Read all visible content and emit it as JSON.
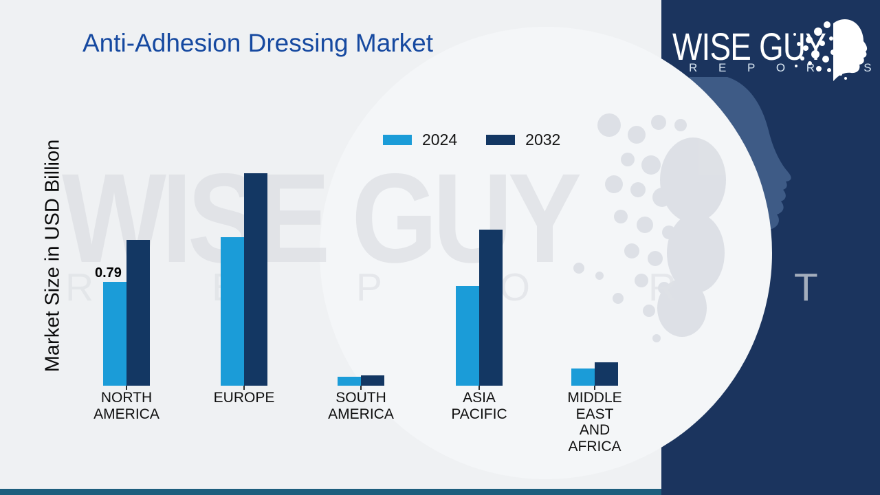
{
  "title": "Anti-Adhesion Dressing Market",
  "y_axis_label": "Market Size in USD Billion",
  "watermark": {
    "line1": "WISE GUY",
    "line2": "R E P O R T S"
  },
  "logo": {
    "brand": "WISE GUY",
    "reports": "R E P O R T S"
  },
  "colors": {
    "background": "#eff1f3",
    "panel_navy": "#1b345e",
    "accent_2024": "#1b9cd8",
    "accent_2032": "#133763",
    "title_blue": "#1649a0",
    "bottom_strip_teal": "#1d5e7d"
  },
  "chart_data": {
    "type": "bar",
    "title": "Anti-Adhesion Dressing Market",
    "xlabel": "",
    "ylabel": "Market Size in USD Billion",
    "categories": [
      "NORTH\nAMERICA",
      "EUROPE",
      "SOUTH\nAMERICA",
      "ASIA\nPACIFIC",
      "MIDDLE\nEAST\nAND\nAFRICA"
    ],
    "series": [
      {
        "name": "2024",
        "color": "#1b9cd8",
        "values": [
          0.79,
          1.13,
          0.07,
          0.76,
          0.13
        ]
      },
      {
        "name": "2032",
        "color": "#133763",
        "values": [
          1.11,
          1.62,
          0.08,
          1.19,
          0.18
        ]
      }
    ],
    "data_label": {
      "group": 0,
      "series": 0,
      "text": "0.79"
    },
    "ylim": [
      0,
      1.8
    ],
    "grid": false,
    "axis_line": false,
    "legend_position": "top"
  }
}
